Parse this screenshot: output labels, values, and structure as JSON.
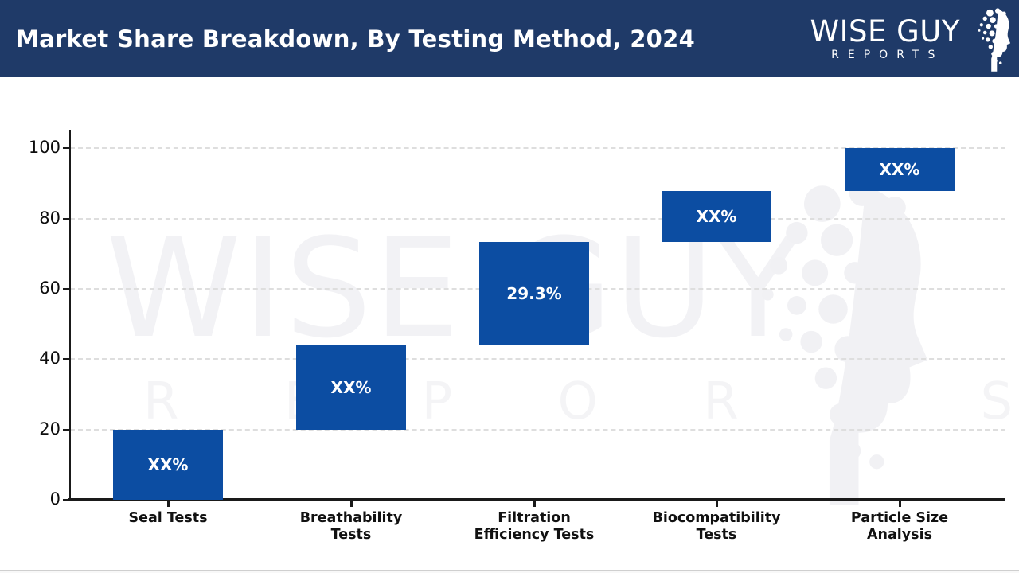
{
  "header": {
    "title": "Market Share Breakdown, By Testing Method, 2024",
    "logo": {
      "line1": "WISE GUY",
      "line2": "REPORTS",
      "head_icon": "dotted-head-profile-icon"
    }
  },
  "watermark": {
    "line1": "WISE GUY",
    "line2": "R E P O R T S",
    "head_icon": "dotted-head-profile-icon"
  },
  "colors": {
    "header_bg": "#1f3a68",
    "bar_blue": "#0c4da2",
    "grid": "#dedede",
    "axis": "#1a1a1a",
    "bar_label_text": "#ffffff",
    "watermark_gray": "#f2f2f5"
  },
  "chart_data": {
    "type": "bar",
    "variant": "floating-waterfall",
    "title": "Market Share Breakdown, By Testing Method, 2024",
    "categories": [
      "Seal Tests",
      "Breathability\nTests",
      "Filtration\nEfficiency Tests",
      "Biocompatibility\nTests",
      "Particle Size\nAnalysis"
    ],
    "values": [
      20,
      24,
      29.3,
      14.5,
      12.2
    ],
    "ranges": [
      [
        0,
        20
      ],
      [
        20,
        44
      ],
      [
        44,
        73.3
      ],
      [
        73.3,
        87.8
      ],
      [
        87.8,
        100
      ]
    ],
    "bar_labels": [
      "XX%",
      "XX%",
      "29.3%",
      "XX%",
      "XX%"
    ],
    "yticks": [
      0,
      20,
      40,
      60,
      80,
      100
    ],
    "ylim": [
      0,
      105
    ],
    "xlabel": "",
    "ylabel": "",
    "grid": "horizontal-dashed",
    "legend": "none"
  }
}
